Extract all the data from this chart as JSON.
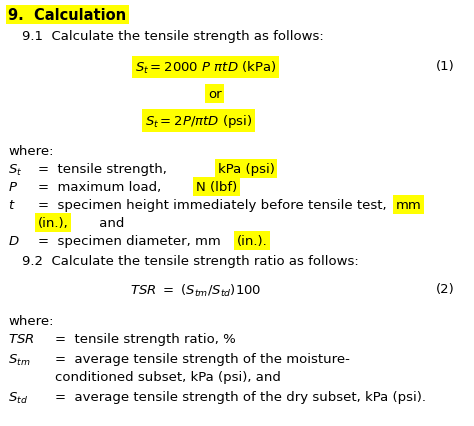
{
  "bg_color": "#ffffff",
  "highlight_yellow": "#ffff00",
  "fs": 9.5,
  "fs_title": 10.5,
  "fig_w": 4.74,
  "fig_h": 4.27,
  "dpi": 100
}
